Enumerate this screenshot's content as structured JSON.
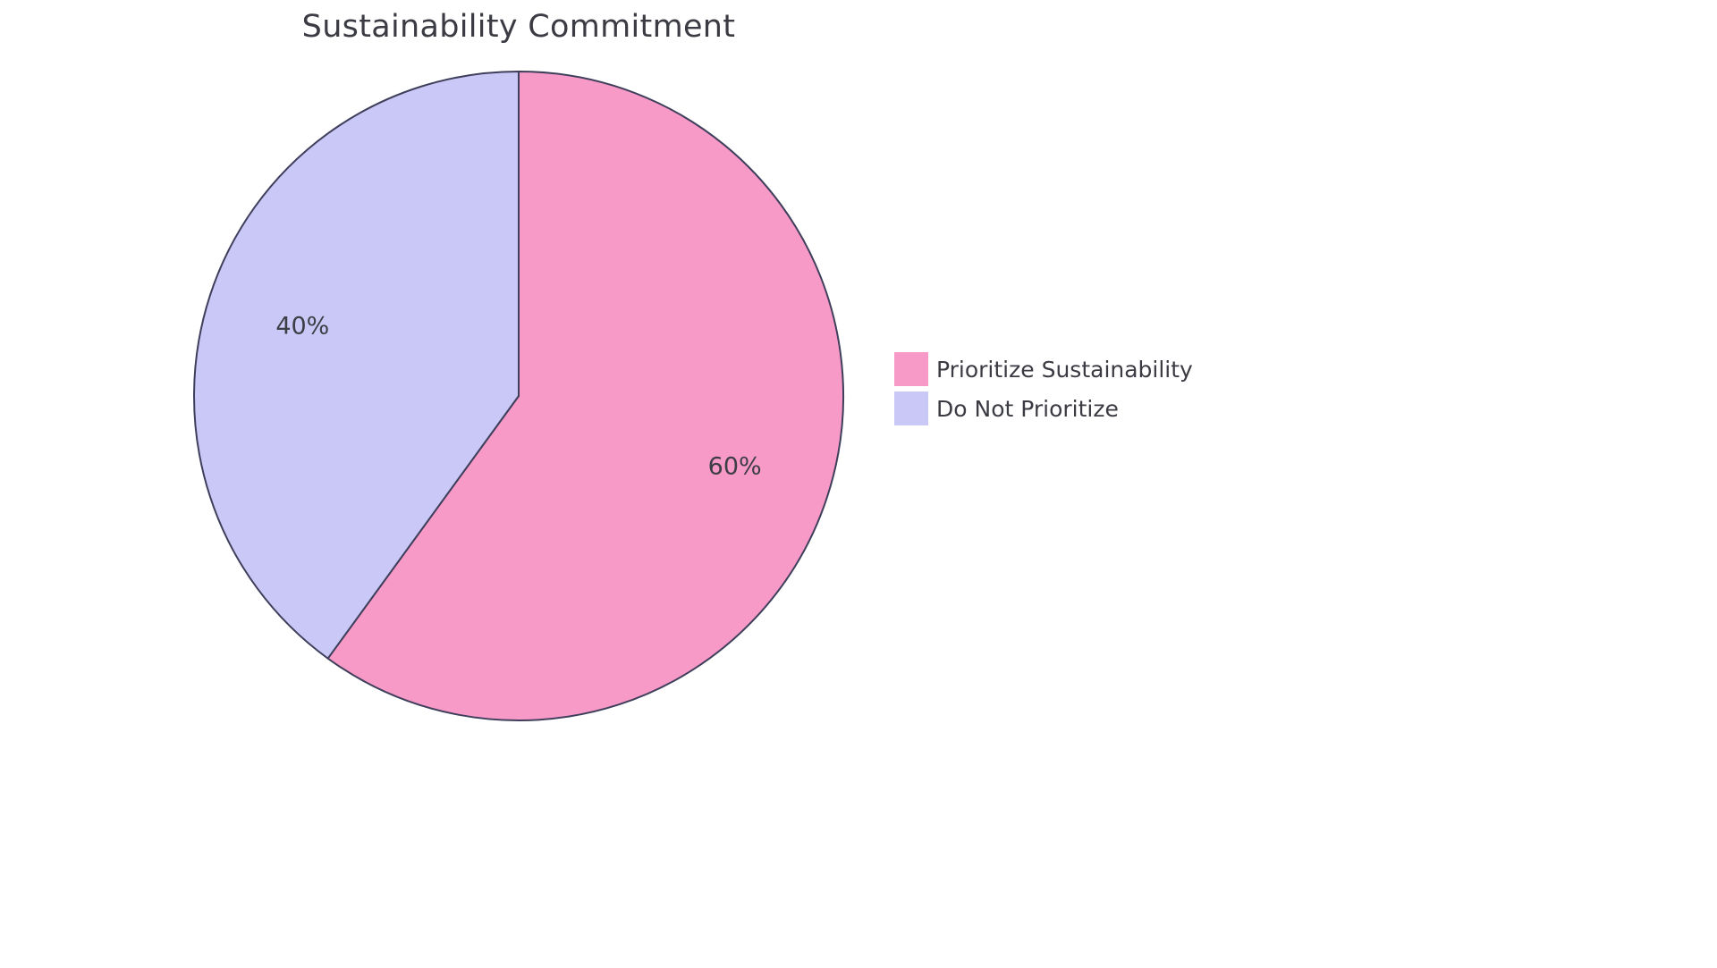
{
  "chart_data": {
    "type": "pie",
    "title": "Sustainability Commitment",
    "slices": [
      {
        "label": "Prioritize Sustainability",
        "value": 60,
        "display_pct": "60%",
        "color": "#F89AC8"
      },
      {
        "label": "Do Not Prioritize",
        "value": 40,
        "display_pct": "40%",
        "color": "#C9C8F6"
      }
    ],
    "legend_position": "right",
    "start_angle": "top",
    "direction": "clockwise",
    "stroke_color": "#3F3F5C",
    "stroke_width": 2,
    "label_color": "#3d3d46",
    "title_color": "#3b3b43",
    "background": "#ffffff"
  }
}
